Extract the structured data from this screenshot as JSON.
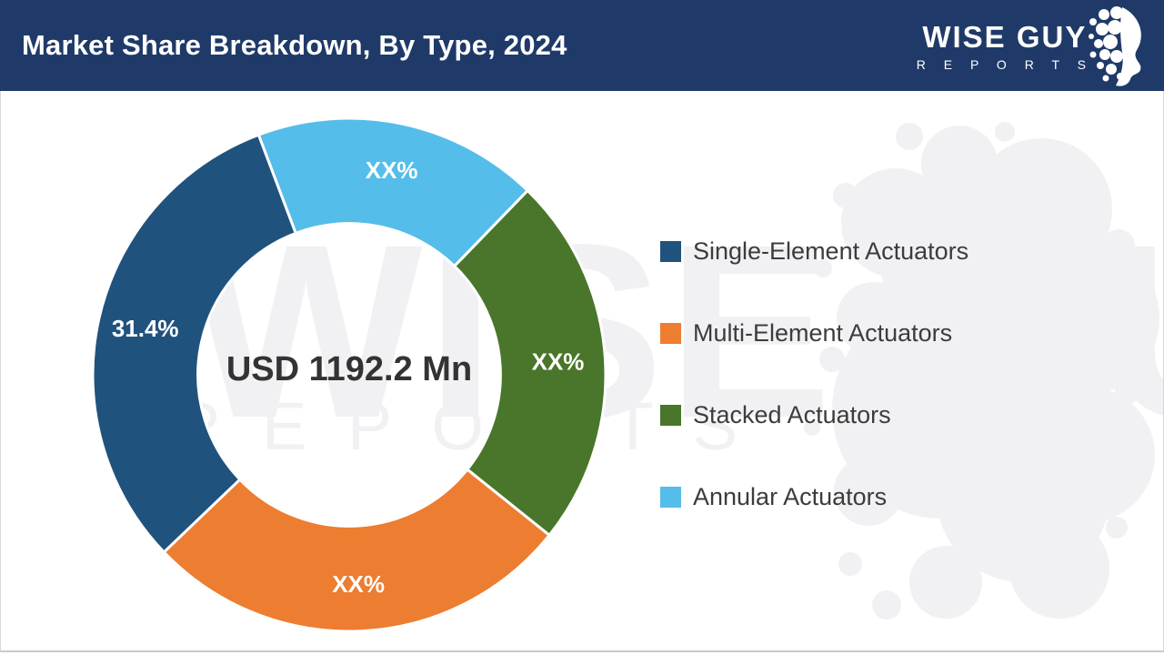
{
  "header": {
    "title": "Market Share Breakdown, By Type, 2024",
    "bg_color": "#1F3A68",
    "logo_line1": "WISE GUY",
    "logo_line2": "R E P O R T S"
  },
  "watermark": {
    "line1": "WISE GUY",
    "line2": "R E P O R T S"
  },
  "chart_data": {
    "type": "pie",
    "subtype": "donut",
    "title": "Market Share Breakdown, By Type, 2024",
    "center_label": "USD 1192.2 Mn",
    "start_bearing_deg": 339.3,
    "inner_radius_ratio": 0.59,
    "legend_position": "right",
    "slices": [
      {
        "name": "Annular Actuators",
        "label": "XX%",
        "value_pct_est": 18.0,
        "color": "#55BDE9"
      },
      {
        "name": "Stacked Actuators",
        "label": "XX%",
        "value_pct_est": 23.5,
        "color": "#49762B"
      },
      {
        "name": "Multi-Element Actuators",
        "label": "XX%",
        "value_pct_est": 27.1,
        "color": "#ED7D31"
      },
      {
        "name": "Single-Element Actuators",
        "label": "31.4%",
        "value_pct_est": 31.4,
        "color": "#20527E"
      }
    ]
  },
  "legend": {
    "items": [
      {
        "label": "Single-Element Actuators",
        "color": "#20527E"
      },
      {
        "label": "Multi-Element Actuators",
        "color": "#ED7D31"
      },
      {
        "label": "Stacked Actuators",
        "color": "#49762B"
      },
      {
        "label": "Annular Actuators",
        "color": "#55BDE9"
      }
    ]
  }
}
